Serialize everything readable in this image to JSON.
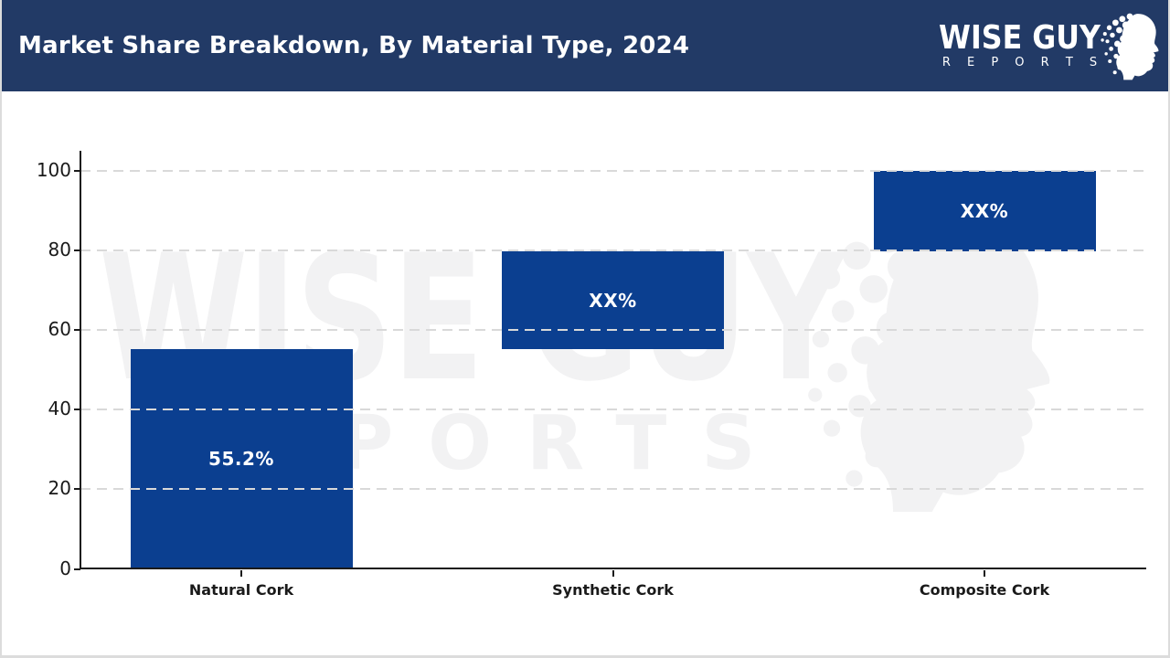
{
  "header": {
    "title": "Market Share Breakdown, By Material Type, 2024",
    "logo_line1": "WISE GUY",
    "logo_line2": "R E P O R T S"
  },
  "watermark": {
    "line1": "WISE GUY",
    "line2": "REPORTS"
  },
  "colors": {
    "header_bg": "#223a66",
    "bar": "#0b3f90",
    "grid": "#d9d9d9",
    "axis": "#1a1a1a",
    "watermark": "#f2f2f3",
    "bar_label_text": "#ffffff",
    "title_text": "#ffffff"
  },
  "chart_data": {
    "type": "bar",
    "subtype": "segmented-cumulative",
    "title": "Market Share Breakdown, By Material Type, 2024",
    "categories": [
      "Natural Cork",
      "Synthetic Cork",
      "Composite Cork"
    ],
    "segments": [
      {
        "category": "Natural Cork",
        "start": 0,
        "end": 55.2,
        "value_est": 55.2,
        "label": "55.2%"
      },
      {
        "category": "Synthetic Cork",
        "start": 55.2,
        "end": 79.7,
        "value_est": 24.5,
        "label": "XX%"
      },
      {
        "category": "Composite Cork",
        "start": 79.7,
        "end": 100,
        "value_est": 20.3,
        "label": "XX%"
      }
    ],
    "y_ticks": [
      0,
      20,
      40,
      60,
      80,
      100
    ],
    "ylim": [
      0,
      105
    ],
    "xlabel": "",
    "ylabel": "",
    "grid": "horizontal-dashed",
    "grid_above_bars": true,
    "legend": "none",
    "bar_color": "#0b3f90"
  }
}
